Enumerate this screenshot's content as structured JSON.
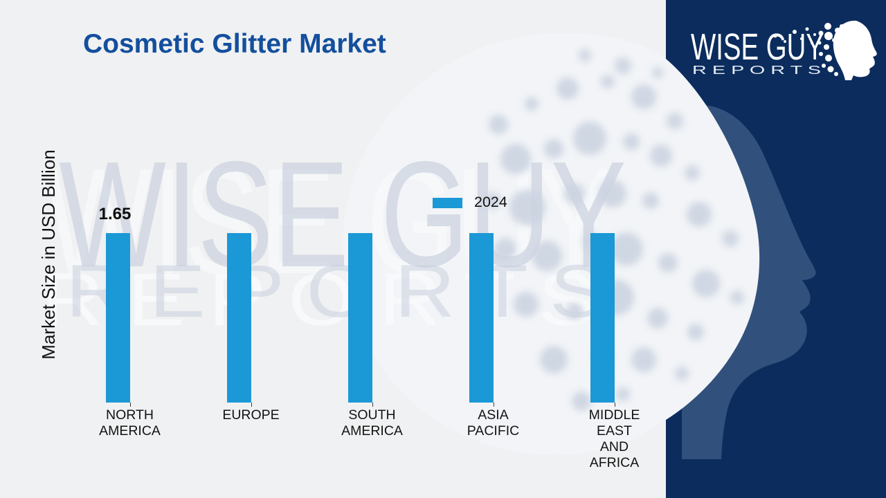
{
  "page": {
    "background_color": "#f0f1f2"
  },
  "header": {
    "title": "Cosmetic Glitter Market",
    "title_color": "#134f9d"
  },
  "brand": {
    "panel_color": "#0b2c5d",
    "logo_line1": "WISE GUY",
    "logo_line2": "R E P O R T S"
  },
  "watermark": {
    "line1": "WISE GUY",
    "line2": "R E P O R T S"
  },
  "chart": {
    "y_axis_label": "Market Size in USD Billion",
    "legend": {
      "label": "2024",
      "swatch_color": "#1b98d6"
    },
    "bar_color": "#1b98d6"
  },
  "chart_data": {
    "type": "bar",
    "title": "Cosmetic Glitter Market",
    "categories": [
      "NORTH AMERICA",
      "EUROPE",
      "SOUTH AMERICA",
      "ASIA PACIFIC",
      "MIDDLE EAST AND AFRICA"
    ],
    "category_label_lines": [
      "NORTH\nAMERICA",
      "EUROPE",
      "SOUTH\nAMERICA",
      "ASIA\nPACIFIC",
      "MIDDLE\nEAST\nAND\nAFRICA"
    ],
    "series": [
      {
        "name": "2024",
        "values": [
          1.65,
          1.65,
          1.65,
          1.65,
          1.65
        ]
      }
    ],
    "value_labels": [
      "1.65",
      "",
      "",
      "",
      ""
    ],
    "xlabel": "",
    "ylabel": "Market Size in USD Billion",
    "ylim": [
      0,
      1.8
    ],
    "grid": false,
    "legend_position": "top-center of plot",
    "bar_color": "#1b98d6"
  },
  "footer": {
    "bar_color": "#17607f"
  }
}
